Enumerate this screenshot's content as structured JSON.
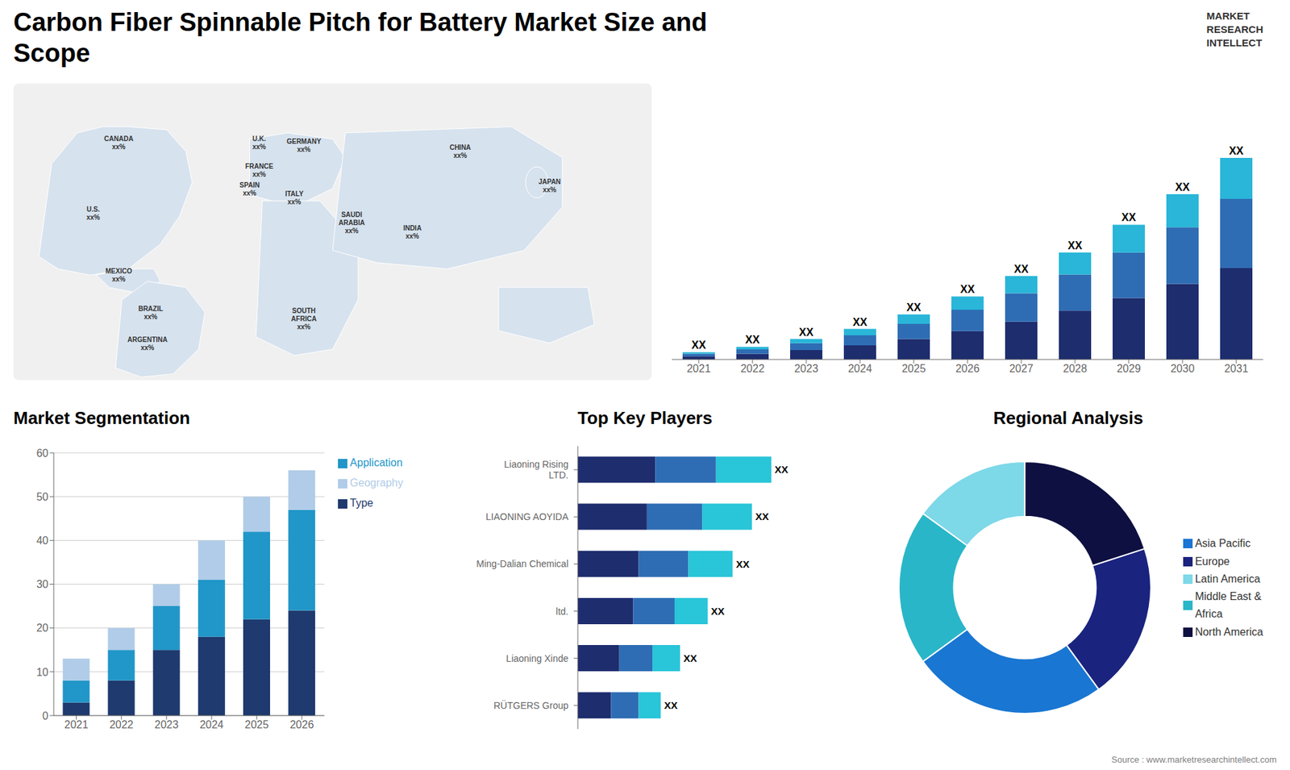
{
  "chart_data": [
    {
      "type": "map",
      "title": "Carbon Fiber Spinnable Pitch for Battery Market Size and",
      "subtitle": "Scope",
      "annotations": [
        "CANADA\nxx%",
        "U.S.\nxx%",
        "MEXICO\nxx%",
        "BRAZIL\nxx%",
        "ARGENTINA\nxx%",
        "U.K.\nxx%",
        "FRANCE\nxx%",
        "GERMANY\nxx%",
        "SPAIN\nxx%",
        "ITALY\nxx%",
        "SAUDI\nARABIA\nxx%",
        "SOUTH\nAFRICA\nxx%",
        "CHINA\nxx%",
        "INDIA\nxx%",
        "JAPAN\nxx%"
      ]
    },
    {
      "type": "bar",
      "stacked": true,
      "categories": [
        "2021",
        "2022",
        "2023",
        "2024",
        "2025",
        "2026",
        "2027",
        "2028",
        "2029",
        "2030",
        "2031"
      ],
      "series": [
        {
          "color": "#1e2d6e",
          "values": [
            1.0,
            1.8,
            3.0,
            4.5,
            6.5,
            9.0,
            12.0,
            15.5,
            19.5,
            24.0,
            29.0
          ]
        },
        {
          "color": "#2e6db4",
          "values": [
            0.8,
            1.4,
            2.2,
            3.2,
            4.8,
            6.8,
            9.0,
            11.5,
            14.5,
            18.0,
            22.0
          ]
        },
        {
          "color": "#29b6d8",
          "values": [
            0.5,
            0.8,
            1.3,
            2.0,
            3.0,
            4.2,
            5.5,
            7.0,
            8.8,
            10.5,
            13.0
          ]
        }
      ],
      "ylim": [
        0,
        83.2
      ],
      "tick_labels": "x",
      "annotations": [
        "XX",
        "XX",
        "XX",
        "XX",
        "XX",
        "XX",
        "XX",
        "XX",
        "XX",
        "XX",
        "XX"
      ]
    },
    {
      "type": "bar",
      "stacked": true,
      "title": "Market Segmentation",
      "categories": [
        "2021",
        "2022",
        "2023",
        "2024",
        "2025",
        "2026"
      ],
      "series": [
        {
          "name": "Type",
          "color": "#1e3a6e",
          "values": [
            3,
            8,
            15,
            18,
            22,
            24
          ]
        },
        {
          "name": "Application",
          "color": "#2196c8",
          "values": [
            5,
            7,
            10,
            13,
            20,
            23
          ]
        },
        {
          "name": "Geography",
          "color": "#b0cce8",
          "values": [
            5,
            5,
            5,
            9,
            8,
            9
          ]
        }
      ],
      "ylim": [
        0,
        60
      ],
      "yticks": [
        0,
        10,
        20,
        30,
        40,
        50,
        60
      ],
      "grid": true,
      "legend": "right"
    },
    {
      "type": "bar",
      "stacked": true,
      "orientation": "horizontal",
      "title": "Top Key Players",
      "categories": [
        "Liaoning Rising\nLTD.",
        "LIAONING AOYIDA",
        "Ming-Dalian Chemical",
        "ltd.",
        "Liaoning Xinde",
        "RÜTGERS Group"
      ],
      "series": [
        {
          "color": "#1e2d6e",
          "values": [
            0.28,
            0.25,
            0.22,
            0.2,
            0.15,
            0.12
          ]
        },
        {
          "color": "#2e6db4",
          "values": [
            0.22,
            0.2,
            0.18,
            0.15,
            0.12,
            0.1
          ]
        },
        {
          "color": "#29c5d8",
          "values": [
            0.2,
            0.18,
            0.16,
            0.12,
            0.1,
            0.08
          ]
        }
      ],
      "xlim": [
        0,
        0.875
      ],
      "tick_labels": "y",
      "annotations": [
        "XX",
        "XX",
        "XX",
        "XX",
        "XX",
        "XX"
      ]
    },
    {
      "type": "pie",
      "title": "Regional Analysis",
      "categories": [
        "Latin America",
        "Middle East &\nAfrica",
        "Asia Pacific",
        "Europe",
        "North America"
      ],
      "values": [
        15,
        20,
        25,
        20,
        20
      ],
      "colors": [
        "#7dd8e8",
        "#29b6c8",
        "#1976d2",
        "#1a237e",
        "#0d1040"
      ],
      "legend": "right",
      "annotations": [
        "MARKET\nRESEARCH\nINTELLECT",
        "Source : www.marketresearchintellect.com"
      ]
    }
  ]
}
